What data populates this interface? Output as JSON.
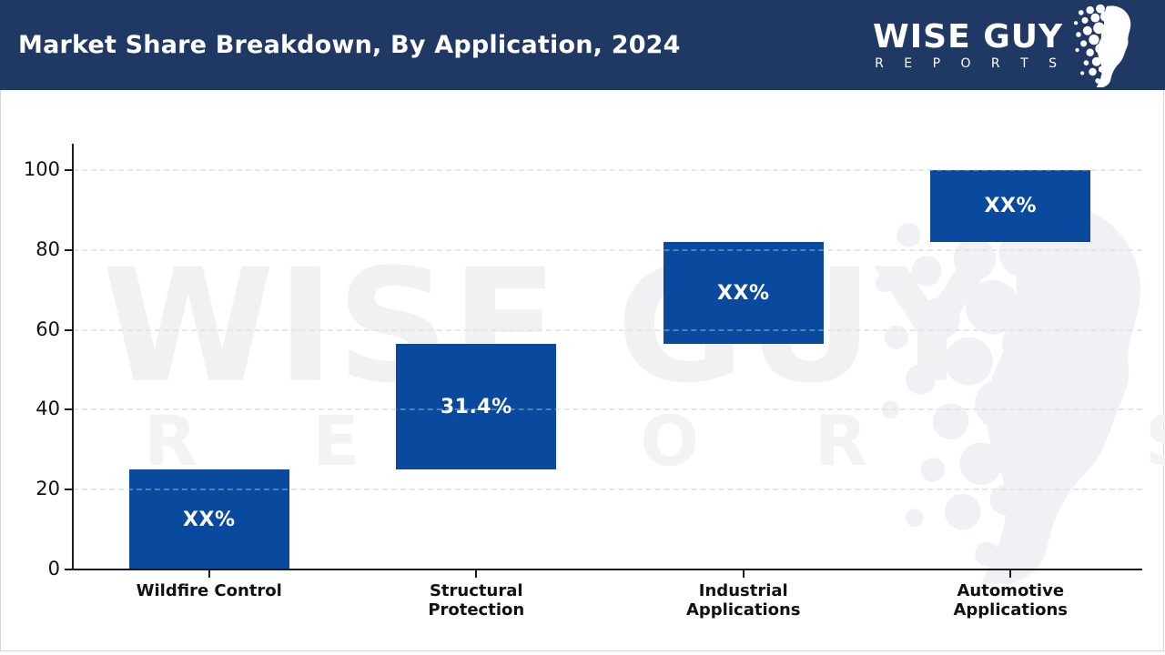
{
  "header": {
    "title": "Market Share Breakdown, By Application, 2024",
    "bg_color": "#203864",
    "logo": {
      "line1": "WISE GUY",
      "line2": "R E P O R T S",
      "icon": "dotted-head-profile"
    }
  },
  "watermark": {
    "text_large": "WISE GUY",
    "text_small": "R E P O R T S",
    "icon": "dotted-head-profile",
    "color": "#f1f1f4"
  },
  "chart_data": {
    "type": "bar",
    "subtype": "floating-waterfall",
    "title": "Market Share Breakdown, By Application, 2024",
    "categories": [
      "Wildfire Control",
      "Structural Protection",
      "Industrial Applications",
      "Automotive Applications"
    ],
    "series": [
      {
        "name": "Market Share (%)",
        "base": [
          0,
          25,
          56.4,
          82
        ],
        "value": [
          25,
          31.4,
          25.6,
          18
        ]
      }
    ],
    "bar_labels": [
      "XX%",
      "31.4%",
      "XX%",
      "XX%"
    ],
    "xlabel": "",
    "ylabel": "",
    "ylim": [
      0,
      100
    ],
    "yticks": [
      0,
      20,
      40,
      60,
      80,
      100
    ],
    "grid": "horizontal-dashed",
    "legend": "none",
    "bar_color": "#0a4a9e",
    "bar_label_color": "#ffffff",
    "axis_color": "#1a1a1a",
    "gridline_color": "#dcdcdc"
  }
}
